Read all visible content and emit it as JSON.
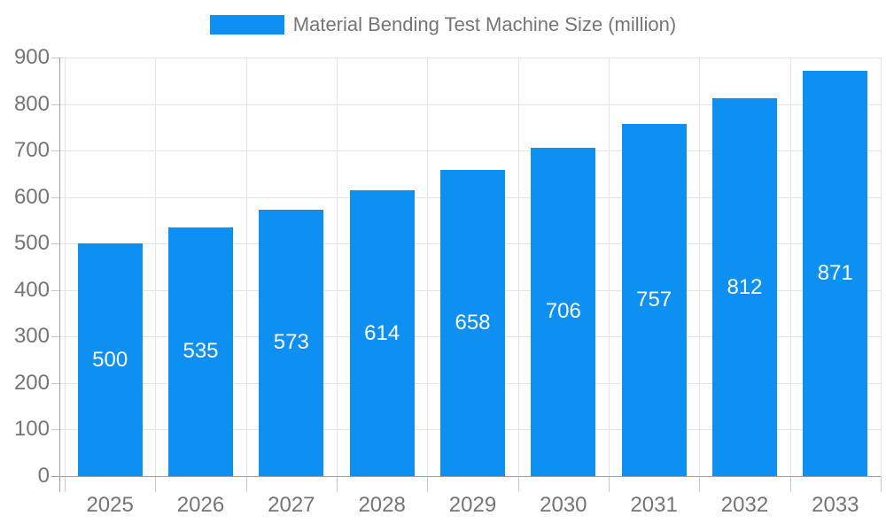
{
  "chart_data": {
    "type": "bar",
    "title": "Material Bending Test Machine Size (million)",
    "categories": [
      "2025",
      "2026",
      "2027",
      "2028",
      "2029",
      "2030",
      "2031",
      "2032",
      "2033"
    ],
    "series": [
      {
        "name": "Material Bending Test Machine Size (million)",
        "values": [
          500,
          535,
          573,
          614,
          658,
          706,
          757,
          812,
          871
        ]
      }
    ],
    "value_labels": [
      "500",
      "535",
      "573",
      "614",
      "658",
      "706",
      "757",
      "812",
      "871"
    ],
    "xlabel": "",
    "ylabel": "",
    "ylim": [
      0,
      900
    ],
    "yticks": [
      0,
      100,
      200,
      300,
      400,
      500,
      600,
      700,
      800,
      900
    ],
    "ytick_labels": [
      "0",
      "100",
      "200",
      "300",
      "400",
      "500",
      "600",
      "700",
      "800",
      "900"
    ],
    "grid": true,
    "legend_position": "top",
    "colors": {
      "bar": "#0e8ff2",
      "value_label": "#ffffff",
      "axis_text": "#757575",
      "legend_text": "#757575",
      "grid_line": "#e4e4e4",
      "axis_line": "#9e9e9e",
      "tick": "#c9c9c9",
      "background": "#ffffff"
    }
  }
}
